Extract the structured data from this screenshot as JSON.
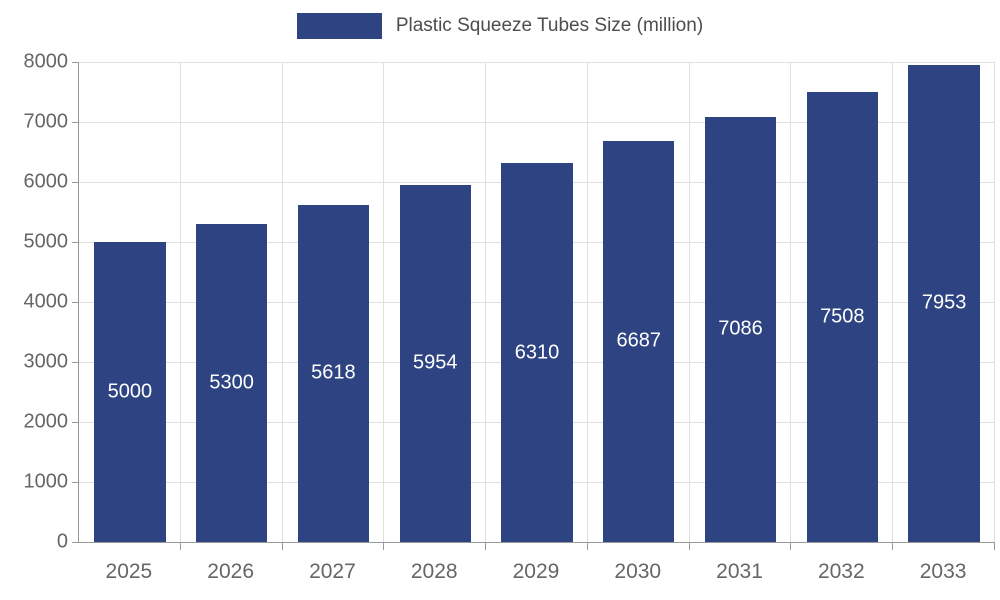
{
  "chart_data": {
    "type": "bar",
    "title": "Plastic Squeeze Tubes Size (million)",
    "legend_entries": [
      "Plastic Squeeze Tubes Size (million)"
    ],
    "categories": [
      "2025",
      "2026",
      "2027",
      "2028",
      "2029",
      "2030",
      "2031",
      "2032",
      "2033"
    ],
    "values": [
      5000,
      5300,
      5618,
      5954,
      6310,
      6687,
      7086,
      7508,
      7953
    ],
    "xlabel": "",
    "ylabel": "",
    "ylim": [
      0,
      8000
    ],
    "yticks": [
      0,
      1000,
      2000,
      3000,
      4000,
      5000,
      6000,
      7000,
      8000
    ],
    "grid": true,
    "legend_position": "top-center",
    "bar_label_position": "middle-inside",
    "bar_width_ratio": 0.7,
    "colors": {
      "bar": "#2e4482",
      "bar_label": "#ffffff",
      "axis_text": "#666666",
      "legend_text": "#4d4d4d",
      "grid_line": "#e0e0e0",
      "axis_line": "#999999",
      "background": "#ffffff"
    }
  }
}
